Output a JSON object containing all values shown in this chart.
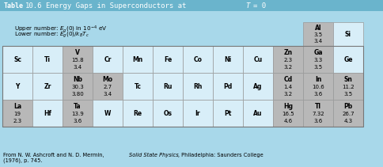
{
  "header_bg": "#a8d8ea",
  "title_bar_bg": "#6ab4cc",
  "table_body_bg": "#c8e8f4",
  "cell_plain_bg": "#d8eef8",
  "cell_highlight_bg": "#b8b8b8",
  "upper_label": "Upper number: $E_g(0)$ in $10^{-4}$ eV",
  "lower_label": "Lower number: $E_g(0)/k_BT_c$",
  "rows": [
    {
      "row_idx": 0,
      "cells": [
        {
          "col": 10,
          "symbol": "Al",
          "val1": "3.5",
          "val2": "3.4",
          "highlighted": true
        },
        {
          "col": 11,
          "symbol": "Si",
          "val1": "",
          "val2": "",
          "highlighted": false
        }
      ]
    },
    {
      "row_idx": 1,
      "cells": [
        {
          "col": 0,
          "symbol": "Sc",
          "val1": "",
          "val2": "",
          "highlighted": false
        },
        {
          "col": 1,
          "symbol": "Ti",
          "val1": "",
          "val2": "",
          "highlighted": false
        },
        {
          "col": 2,
          "symbol": "V",
          "val1": "15.8",
          "val2": "3.4",
          "highlighted": true
        },
        {
          "col": 3,
          "symbol": "Cr",
          "val1": "",
          "val2": "",
          "highlighted": false
        },
        {
          "col": 4,
          "symbol": "Mn",
          "val1": "",
          "val2": "",
          "highlighted": false
        },
        {
          "col": 5,
          "symbol": "Fe",
          "val1": "",
          "val2": "",
          "highlighted": false
        },
        {
          "col": 6,
          "symbol": "Co",
          "val1": "",
          "val2": "",
          "highlighted": false
        },
        {
          "col": 7,
          "symbol": "Ni",
          "val1": "",
          "val2": "",
          "highlighted": false
        },
        {
          "col": 8,
          "symbol": "Cu",
          "val1": "",
          "val2": "",
          "highlighted": false
        },
        {
          "col": 9,
          "symbol": "Zn",
          "val1": "2.3",
          "val2": "3.2",
          "highlighted": true
        },
        {
          "col": 10,
          "symbol": "Ga",
          "val1": "3.3",
          "val2": "3.5",
          "highlighted": true
        },
        {
          "col": 11,
          "symbol": "Ge",
          "val1": "",
          "val2": "",
          "highlighted": false
        }
      ]
    },
    {
      "row_idx": 2,
      "cells": [
        {
          "col": 0,
          "symbol": "Y",
          "val1": "",
          "val2": "",
          "highlighted": false
        },
        {
          "col": 1,
          "symbol": "Zr",
          "val1": "",
          "val2": "",
          "highlighted": false
        },
        {
          "col": 2,
          "symbol": "Nb",
          "val1": "30.3",
          "val2": "3.80",
          "highlighted": true
        },
        {
          "col": 3,
          "symbol": "Mo",
          "val1": "2.7",
          "val2": "3.4",
          "highlighted": true
        },
        {
          "col": 4,
          "symbol": "Tc",
          "val1": "",
          "val2": "",
          "highlighted": false
        },
        {
          "col": 5,
          "symbol": "Ru",
          "val1": "",
          "val2": "",
          "highlighted": false
        },
        {
          "col": 6,
          "symbol": "Rh",
          "val1": "",
          "val2": "",
          "highlighted": false
        },
        {
          "col": 7,
          "symbol": "Pd",
          "val1": "",
          "val2": "",
          "highlighted": false
        },
        {
          "col": 8,
          "symbol": "Ag",
          "val1": "",
          "val2": "",
          "highlighted": false
        },
        {
          "col": 9,
          "symbol": "Cd",
          "val1": "1.4",
          "val2": "3.2",
          "highlighted": true
        },
        {
          "col": 10,
          "symbol": "In",
          "val1": "10.6",
          "val2": "3.6",
          "highlighted": true
        },
        {
          "col": 11,
          "symbol": "Sn",
          "val1": "11.2",
          "val2": "3.5",
          "highlighted": true
        }
      ]
    },
    {
      "row_idx": 3,
      "cells": [
        {
          "col": 0,
          "symbol": "La",
          "val1": "19",
          "val2": "2.3",
          "highlighted": true
        },
        {
          "col": 1,
          "symbol": "Hf",
          "val1": "",
          "val2": "",
          "highlighted": false
        },
        {
          "col": 2,
          "symbol": "Ta",
          "val1": "13.9",
          "val2": "3.6",
          "highlighted": true
        },
        {
          "col": 3,
          "symbol": "W",
          "val1": "",
          "val2": "",
          "highlighted": false
        },
        {
          "col": 4,
          "symbol": "Re",
          "val1": "",
          "val2": "",
          "highlighted": false
        },
        {
          "col": 5,
          "symbol": "Os",
          "val1": "",
          "val2": "",
          "highlighted": false
        },
        {
          "col": 6,
          "symbol": "Ir",
          "val1": "",
          "val2": "",
          "highlighted": false
        },
        {
          "col": 7,
          "symbol": "Pt",
          "val1": "",
          "val2": "",
          "highlighted": false
        },
        {
          "col": 8,
          "symbol": "Au",
          "val1": "",
          "val2": "",
          "highlighted": false
        },
        {
          "col": 9,
          "symbol": "Hg",
          "val1": "16.5",
          "val2": "4.6",
          "highlighted": true
        },
        {
          "col": 10,
          "symbol": "Tl",
          "val1": "7.32",
          "val2": "3.6",
          "highlighted": true
        },
        {
          "col": 11,
          "symbol": "Pb",
          "val1": "26.7",
          "val2": "4.3",
          "highlighted": true
        }
      ]
    }
  ]
}
